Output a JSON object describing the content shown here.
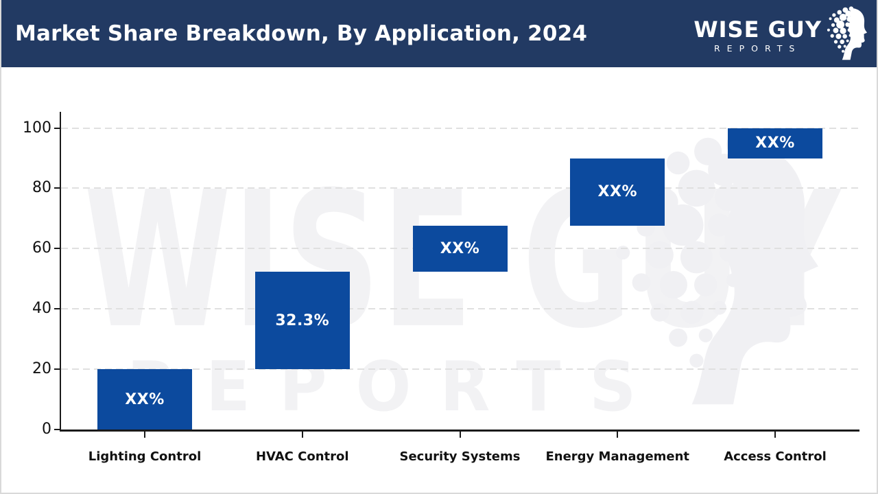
{
  "header": {
    "title": "Market Share Breakdown, By Application, 2024"
  },
  "brand": {
    "name": "WISE GUY",
    "tagline": "REPORTS"
  },
  "watermark": {
    "line1": "WISE GUY",
    "line2": "REPORTS"
  },
  "icons": {
    "brand_head": "dotted-head-profile"
  },
  "colors": {
    "header_bg": "#223a63",
    "bar": "#0c4a9e",
    "grid": "#e0e0e0",
    "axis": "#1a1a1a",
    "watermark": "#f2f2f4",
    "page_border": "#d9d9d9",
    "bar_label": "#ffffff"
  },
  "chart_data": {
    "type": "bar",
    "subtype": "floating-waterfall",
    "title": "Market Share Breakdown, By Application, 2024",
    "categories": [
      "Lighting Control",
      "HVAC Control",
      "Security Systems",
      "Energy Management",
      "Access Control"
    ],
    "segments": [
      {
        "category": "Lighting Control",
        "start": 0,
        "end": 20,
        "label": "XX%"
      },
      {
        "category": "HVAC Control",
        "start": 20,
        "end": 52.3,
        "label": "32.3%"
      },
      {
        "category": "Security Systems",
        "start": 52.3,
        "end": 67.7,
        "label": "XX%"
      },
      {
        "category": "Energy Management",
        "start": 67.7,
        "end": 90,
        "label": "XX%"
      },
      {
        "category": "Access Control",
        "start": 90,
        "end": 100,
        "label": "XX%"
      }
    ],
    "yticks": [
      0,
      20,
      40,
      60,
      80,
      100
    ],
    "ylim": [
      0,
      105
    ],
    "xlabel": "",
    "ylabel": "",
    "legend": "none",
    "grid": "horizontal-dashed",
    "bar_color": "#0c4a9e",
    "label_color": "#ffffff"
  }
}
